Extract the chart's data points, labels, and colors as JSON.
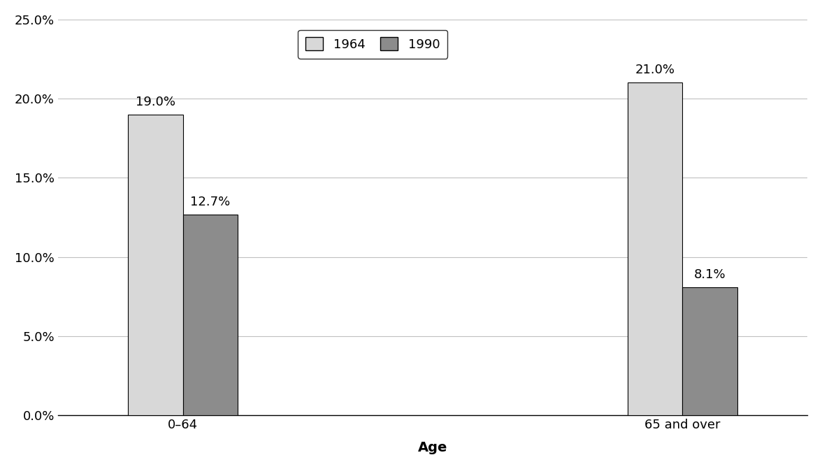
{
  "categories": [
    "0–64",
    "65 and over"
  ],
  "values_1964": [
    19.0,
    21.0
  ],
  "values_1990": [
    12.7,
    8.1
  ],
  "color_1964": "#d8d8d8",
  "color_1990": "#8c8c8c",
  "bar_edge_color": "#000000",
  "bar_width": 0.22,
  "group_positions": [
    1.0,
    3.0
  ],
  "ylim": [
    0,
    0.25
  ],
  "yticks": [
    0.0,
    0.05,
    0.1,
    0.15,
    0.2,
    0.25
  ],
  "ytick_labels": [
    "0.0%",
    "5.0%",
    "10.0%",
    "15.0%",
    "20.0%",
    "25.0%"
  ],
  "xlabel": "Age",
  "legend_labels": [
    "1964",
    "1990"
  ],
  "label_fontsize": 13,
  "tick_fontsize": 13,
  "annot_fontsize": 13,
  "xlabel_fontsize": 14,
  "background_color": "#ffffff",
  "grid_color": "#c0c0c0"
}
